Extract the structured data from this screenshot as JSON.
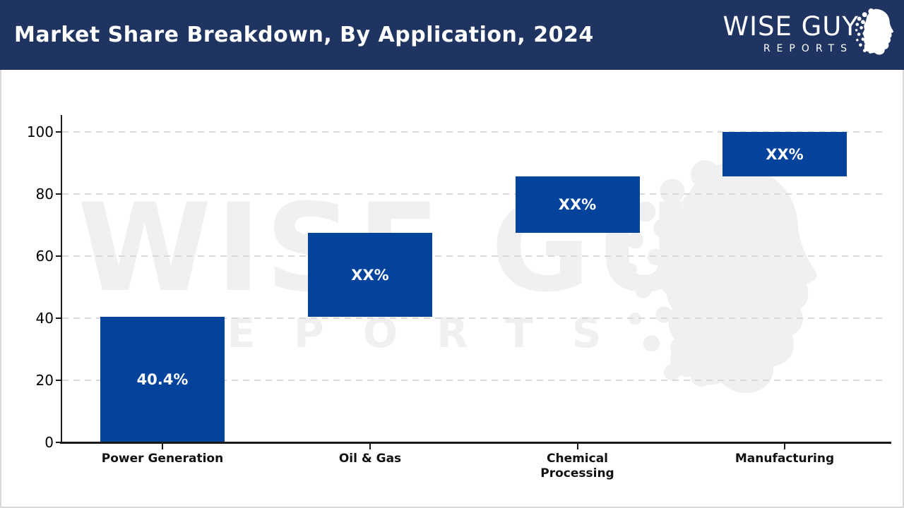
{
  "header": {
    "title": "Market Share Breakdown, By Application, 2024",
    "logo": {
      "name_line": "WISE GUY",
      "sub_line": "REPORTS"
    }
  },
  "watermark": {
    "name_line": "WISE GUY",
    "sub_line": "REPORTS"
  },
  "chart_data": {
    "type": "bar",
    "variant": "waterfall",
    "title": "Market Share Breakdown, By Application, 2024",
    "categories": [
      "Power Generation",
      "Oil & Gas",
      "Chemical\nProcessing",
      "Manufacturing"
    ],
    "segments": [
      {
        "category": "Power Generation",
        "label": "40.4%",
        "start": 0,
        "end": 40.4,
        "value": 40.4
      },
      {
        "category": "Oil & Gas",
        "label": "XX%",
        "start": 40.4,
        "end": 67.4,
        "value": 27.0
      },
      {
        "category": "Chemical Processing",
        "label": "XX%",
        "start": 67.4,
        "end": 85.6,
        "value": 18.2
      },
      {
        "category": "Manufacturing",
        "label": "XX%",
        "start": 85.6,
        "end": 100,
        "value": 14.4
      }
    ],
    "yticks": [
      0,
      20,
      40,
      60,
      80,
      100
    ],
    "ylim": [
      0,
      100
    ],
    "xlabel": "",
    "ylabel": "",
    "grid": "horizontal-dashed",
    "legend": "none",
    "colors": {
      "bar": "#04439c",
      "bar_label": "#ffffff",
      "header_bg": "#1f3460",
      "axis": "#1a1a1a",
      "gridline": "#d9d9d9",
      "watermark": "#f0f0f2"
    }
  }
}
